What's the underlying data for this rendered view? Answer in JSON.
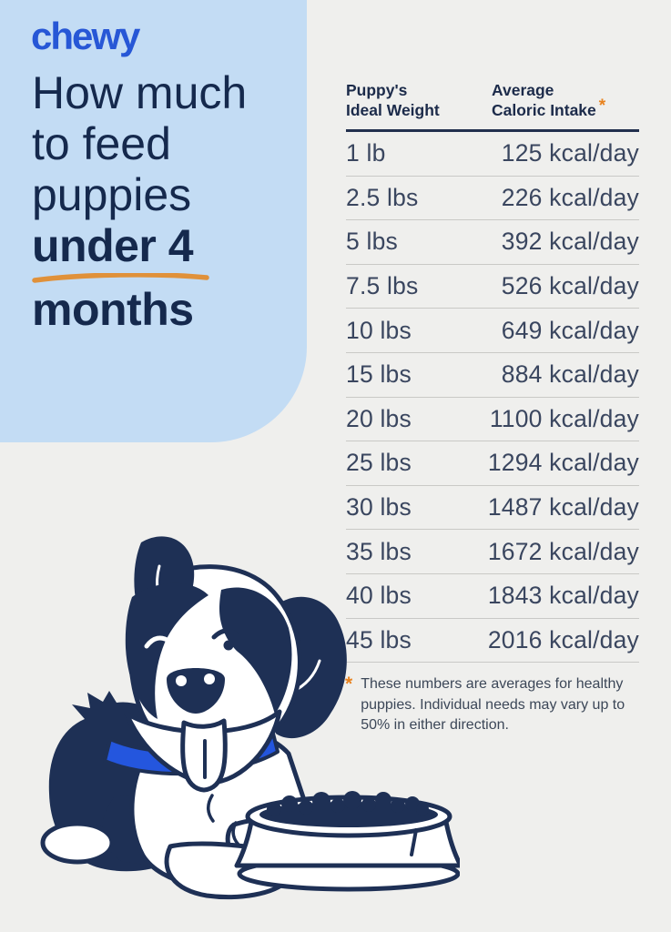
{
  "brand": {
    "logo_text": "chewy"
  },
  "title": {
    "line1": "How much",
    "line2": "to feed",
    "line3": "puppies",
    "bold1": "under 4",
    "bold2": "months"
  },
  "table": {
    "col1_header_line1": "Puppy's",
    "col1_header_line2": "Ideal Weight",
    "col2_header_line1": "Average",
    "col2_header_line2": "Caloric Intake",
    "asterisk": "*",
    "rows": [
      {
        "weight": "1 lb",
        "calories": "125 kcal/day"
      },
      {
        "weight": "2.5 lbs",
        "calories": "226 kcal/day"
      },
      {
        "weight": "5 lbs",
        "calories": "392 kcal/day"
      },
      {
        "weight": "7.5 lbs",
        "calories": "526 kcal/day"
      },
      {
        "weight": "10 lbs",
        "calories": "649 kcal/day"
      },
      {
        "weight": "15 lbs",
        "calories": "884 kcal/day"
      },
      {
        "weight": "20 lbs",
        "calories": "1100 kcal/day"
      },
      {
        "weight": "25 lbs",
        "calories": "1294 kcal/day"
      },
      {
        "weight": "30 lbs",
        "calories": "1487 kcal/day"
      },
      {
        "weight": "35 lbs",
        "calories": "1672 kcal/day"
      },
      {
        "weight": "40 lbs",
        "calories": "1843 kcal/day"
      },
      {
        "weight": "45 lbs",
        "calories": "2016 kcal/day"
      }
    ]
  },
  "footnote": {
    "marker": "*",
    "text": "These numbers are averages for healthy puppies. Individual needs may vary up to 50% in either direction."
  },
  "colors": {
    "background": "#EFEFED",
    "panel_blue": "#C3DCF4",
    "title_navy": "#15294D",
    "row_text": "#3A465F",
    "logo_blue": "#2757D6",
    "collar_blue": "#2456DE",
    "illustration_navy": "#1E3055",
    "accent_orange": "#E8821E",
    "separator_gray": "#C9C9C6"
  },
  "chart_data": {
    "type": "table",
    "title": "How much to feed puppies under 4 months",
    "columns": [
      "Puppy's Ideal Weight",
      "Average Caloric Intake"
    ],
    "weights_lbs": [
      1,
      2.5,
      5,
      7.5,
      10,
      15,
      20,
      25,
      30,
      35,
      40,
      45
    ],
    "avg_caloric_intake_kcal_per_day": [
      125,
      226,
      392,
      526,
      649,
      884,
      1100,
      1294,
      1487,
      1672,
      1843,
      2016
    ],
    "footnote": "These numbers are averages for healthy puppies. Individual needs may vary up to 50% in either direction."
  }
}
